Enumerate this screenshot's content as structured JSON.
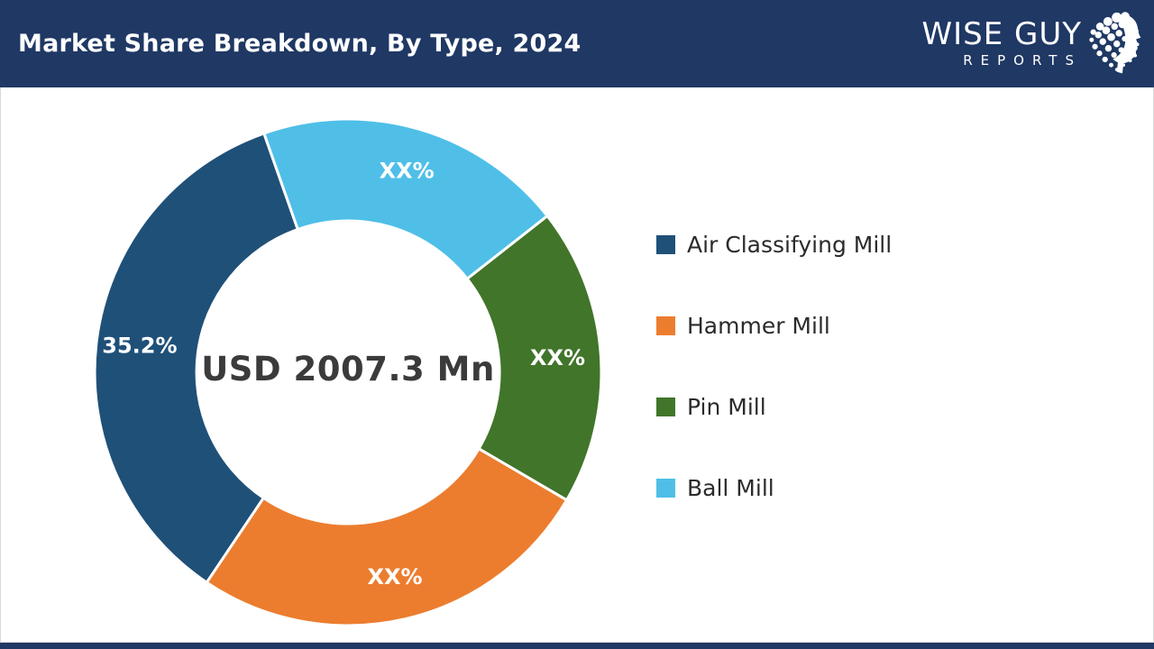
{
  "header": {
    "title": "Market Share Breakdown, By Type, 2024",
    "bg_color": "#1F3864",
    "logo": {
      "line1": "WISE GUY",
      "line2": "REPORTS"
    }
  },
  "watermark": {
    "line1": "WISE GUY",
    "line2": "REPORTS"
  },
  "chart_data": {
    "type": "donut",
    "title": "Market Share Breakdown, By Type, 2024",
    "center_label": "USD 2007.3 Mn",
    "legend_position": "right",
    "start_angle_deg": 213.9,
    "segments": [
      {
        "name": "Air Classifying Mill",
        "value": 35.2,
        "label": "35.2%",
        "color": "#1F5078"
      },
      {
        "name": "Ball Mill",
        "value": 19.8,
        "label": "XX%",
        "color": "#4FBFE8"
      },
      {
        "name": "Pin Mill",
        "value": 19.0,
        "label": "XX%",
        "color": "#41752A"
      },
      {
        "name": "Hammer Mill",
        "value": 26.0,
        "label": "XX%",
        "color": "#EC7D2E"
      }
    ],
    "legend": [
      {
        "label": "Air Classifying Mill",
        "color": "#1F5078"
      },
      {
        "label": "Hammer Mill",
        "color": "#EC7D2E"
      },
      {
        "label": "Pin Mill",
        "color": "#41752A"
      },
      {
        "label": "Ball Mill",
        "color": "#4FBFE8"
      }
    ]
  }
}
